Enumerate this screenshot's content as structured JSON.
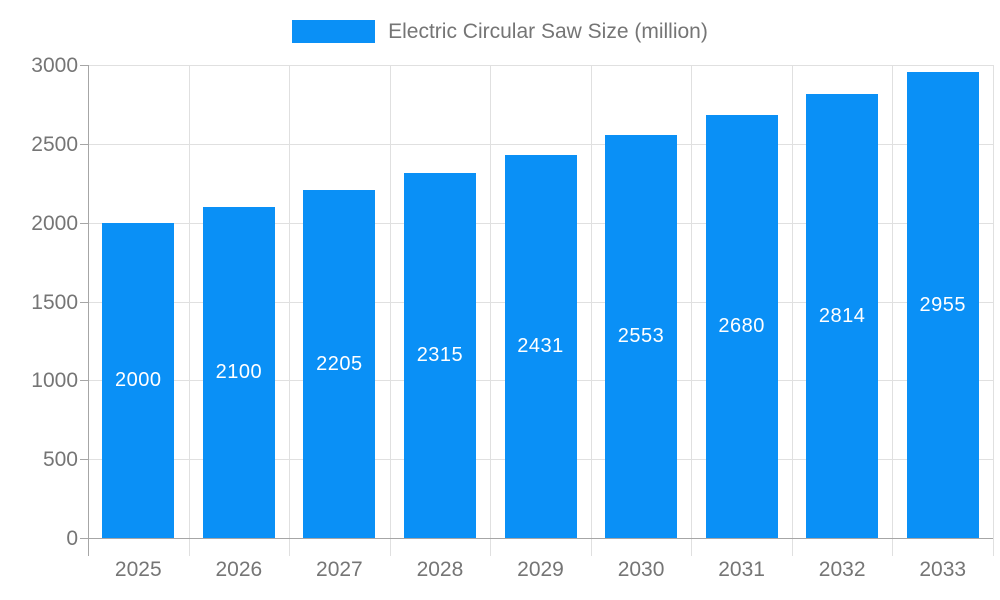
{
  "legend": {
    "label": "Electric Circular Saw Size (million)"
  },
  "colors": {
    "bar": "#0a90f6",
    "axis_text": "#757575",
    "value_text": "#ffffff",
    "grid_line": "#e0e0e0",
    "axis_line": "#a6a6a6"
  },
  "chart_data": {
    "type": "bar",
    "title": "Electric Circular Saw Size (million)",
    "categories": [
      "2025",
      "2026",
      "2027",
      "2028",
      "2029",
      "2030",
      "2031",
      "2032",
      "2033"
    ],
    "values": [
      2000,
      2100,
      2205,
      2315,
      2431,
      2553,
      2680,
      2814,
      2955
    ],
    "series_name": "Electric Circular Saw Size (million)",
    "xlabel": "",
    "ylabel": "",
    "y_ticks": [
      0,
      500,
      1000,
      1500,
      2000,
      2500,
      3000
    ],
    "ylim": [
      0,
      3000
    ],
    "grid": "on",
    "legend_position": "top",
    "value_labels": "inside-center-white"
  }
}
